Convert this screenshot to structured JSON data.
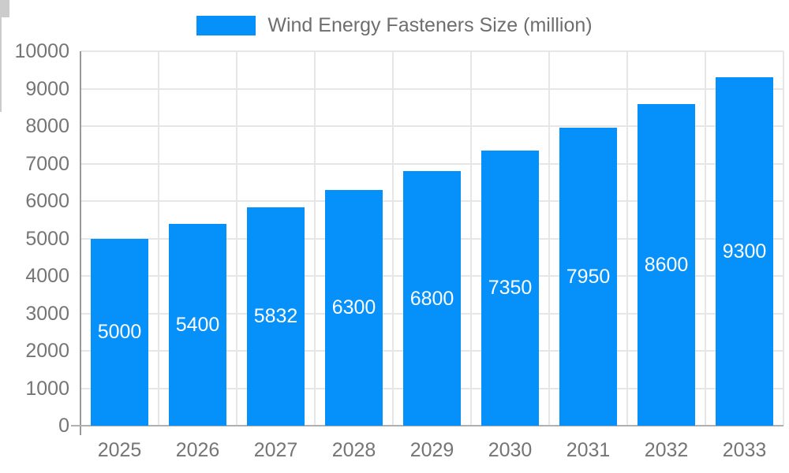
{
  "chart_data": {
    "type": "bar",
    "title": "Wind Energy Fasteners Size (million)",
    "series_name": "Wind Energy Fasteners Size (million)",
    "categories": [
      "2025",
      "2026",
      "2027",
      "2028",
      "2029",
      "2030",
      "2031",
      "2032",
      "2033"
    ],
    "values": [
      5000,
      5400,
      5832,
      6300,
      6800,
      7350,
      7950,
      8600,
      9300
    ],
    "xlabel": "",
    "ylabel": "",
    "ylim": [
      0,
      10000
    ],
    "ytick_step": 1000,
    "grid": true,
    "legend_position": "top-center",
    "bar_color": "#0590FA",
    "bar_label_color": "#ffffff",
    "axis_label_color": "#757575",
    "legend_text_color": "#6e6e6e",
    "gridline_color": "#e6e6e6",
    "axis_line_color": "#999999"
  }
}
